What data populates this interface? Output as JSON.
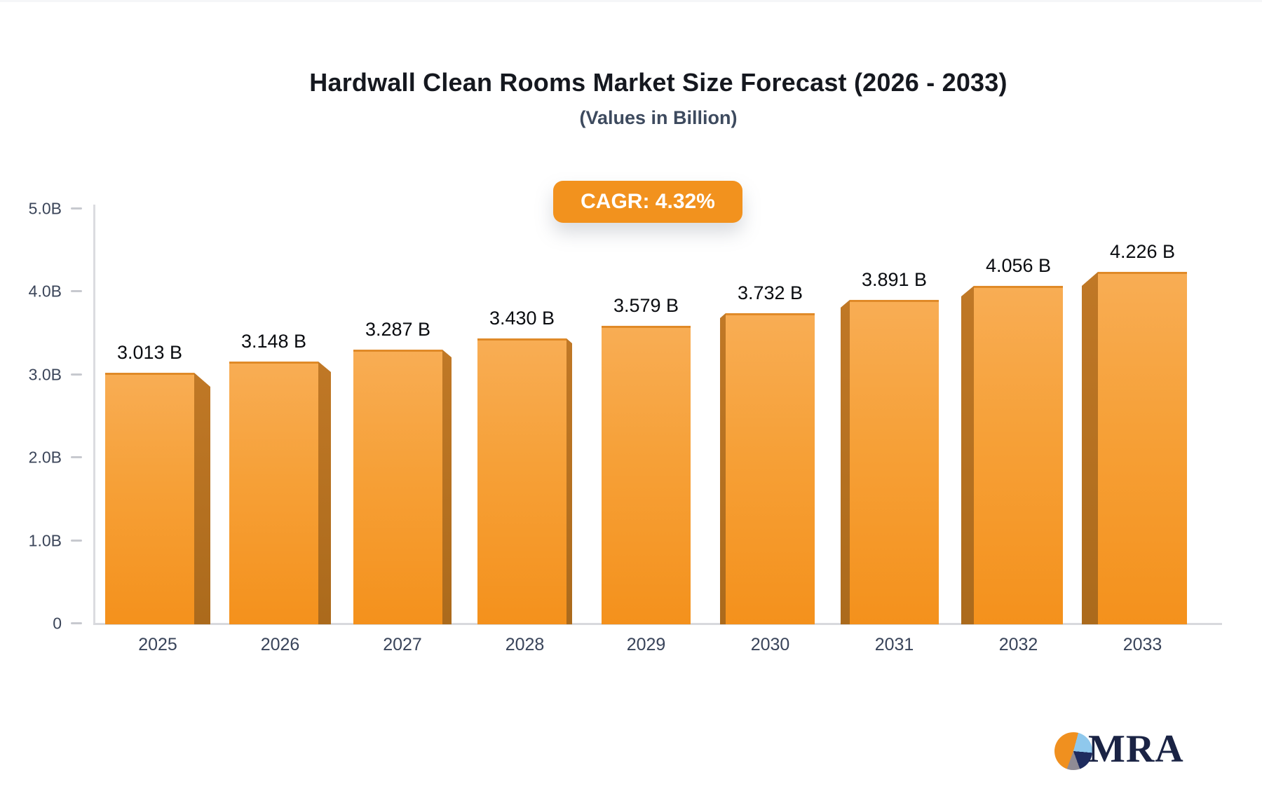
{
  "header": {
    "title": "Hardwall Clean Rooms Market Size Forecast (2026 - 2033)",
    "subtitle": "(Values in Billion)",
    "cagr_badge": "CAGR: 4.32%"
  },
  "chart_data": {
    "type": "bar",
    "title": "Hardwall Clean Rooms Market Size Forecast (2026 - 2033)",
    "subtitle": "(Values in Billion)",
    "annotation": "CAGR: 4.32%",
    "categories": [
      "2025",
      "2026",
      "2027",
      "2028",
      "2029",
      "2030",
      "2031",
      "2032",
      "2033"
    ],
    "values": [
      3.013,
      3.148,
      3.287,
      3.43,
      3.579,
      3.732,
      3.891,
      4.056,
      4.226
    ],
    "value_labels": [
      "3.013 B",
      "3.148 B",
      "3.287 B",
      "3.430 B",
      "3.579 B",
      "3.732 B",
      "3.891 B",
      "4.056 B",
      "4.226 B"
    ],
    "xlabel": "",
    "ylabel": "",
    "ylim": [
      0,
      5
    ],
    "y_tick_values": [
      0,
      1,
      2,
      3,
      4,
      5
    ],
    "y_tick_labels": [
      "0",
      "1.0B",
      "2.0B",
      "3.0B",
      "4.0B",
      "5.0B"
    ],
    "grid": false,
    "legend_position": "none",
    "bar_color_top": "#f8ad54",
    "bar_color_bottom": "#f4911c",
    "bar_side_color": "#b57120",
    "accent_color": "#f2921e"
  },
  "logo": {
    "text": "MRA",
    "pie_icon_colors": [
      "#f0901f",
      "#8fc8ec",
      "#1e2b5e",
      "#8f8b95"
    ]
  }
}
